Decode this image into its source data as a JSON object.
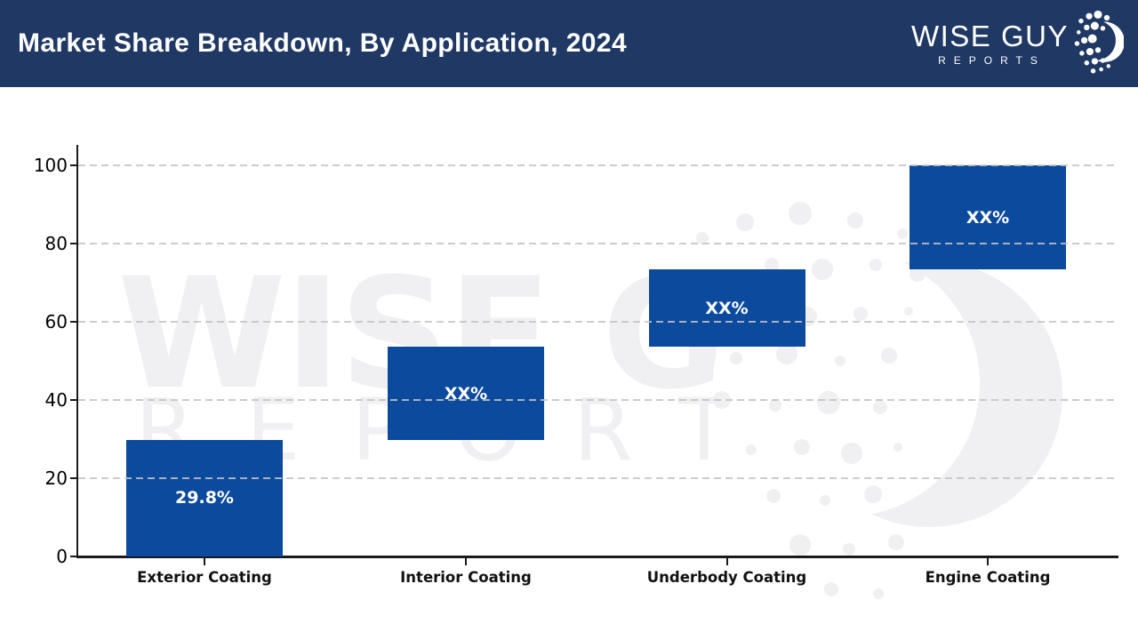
{
  "header": {
    "title": "Market Share Breakdown, By Application, 2024",
    "logo": {
      "wordmark": "WISE GUY",
      "subtext": "REPORTS"
    }
  },
  "watermark": {
    "line1": "WISE GUY",
    "line2": "REPORTS"
  },
  "chart_data": {
    "type": "bar",
    "subtype": "waterfall",
    "title": "Market Share Breakdown, By Application, 2024",
    "categories": [
      "Exterior Coating",
      "Interior Coating",
      "Underbody Coating",
      "Engine Coating"
    ],
    "segments": [
      {
        "category": "Exterior Coating",
        "start": 0,
        "end": 29.8,
        "label": "29.8%"
      },
      {
        "category": "Interior Coating",
        "start": 29.8,
        "end": 53.6,
        "label": "XX%"
      },
      {
        "category": "Underbody Coating",
        "start": 53.6,
        "end": 73.4,
        "label": "XX%"
      },
      {
        "category": "Engine Coating",
        "start": 73.4,
        "end": 100,
        "label": "XX%"
      }
    ],
    "y_ticks": [
      0,
      20,
      40,
      60,
      80,
      100
    ],
    "ylim": [
      0,
      105
    ],
    "xlabel": "",
    "ylabel": "",
    "grid": "horizontal-dashed-over-bars",
    "legend": "none",
    "bar_color": "#0c4a9e",
    "value_label_color": "#ffffff"
  },
  "colors": {
    "header_bg": "#1f3864",
    "bar": "#0c4a9e",
    "axis": "#1a1a1a",
    "grid": "#c3c3c3",
    "watermark": "#f0f0f3",
    "frame_border": "#cccccc"
  }
}
